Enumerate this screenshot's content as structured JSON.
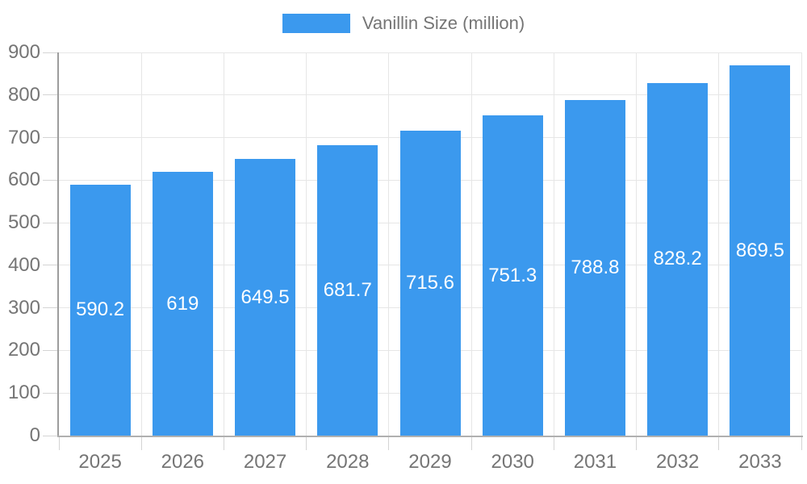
{
  "legend": {
    "label": "Vanillin Size (million)",
    "swatch_color": "#3b99ee"
  },
  "chart_data": {
    "type": "bar",
    "title": "Vanillin Size (million)",
    "categories": [
      "2025",
      "2026",
      "2027",
      "2028",
      "2029",
      "2030",
      "2031",
      "2032",
      "2033"
    ],
    "series": [
      {
        "name": "Vanillin Size (million)",
        "values": [
          590.2,
          619,
          649.5,
          681.7,
          715.6,
          751.3,
          788.8,
          828.2,
          869.5
        ]
      }
    ],
    "value_labels": [
      "590.2",
      "619",
      "649.5",
      "681.7",
      "715.6",
      "751.3",
      "788.8",
      "828.2",
      "869.5"
    ],
    "xlabel": "",
    "ylabel": "",
    "ylim": [
      0,
      900
    ],
    "ytick_interval": 100,
    "ytick_labels": [
      "0",
      "100",
      "200",
      "300",
      "400",
      "500",
      "600",
      "700",
      "800",
      "900"
    ],
    "grid": true,
    "legend_position": "top-center",
    "colors": {
      "bar": "#3b99ee",
      "bar_value_text": "#ffffff",
      "axis_text": "#757575",
      "axis_line": "#9d9d9d",
      "grid_line": "#e6e6e6",
      "tick_line": "#d4d4d4",
      "background": "#ffffff"
    }
  }
}
